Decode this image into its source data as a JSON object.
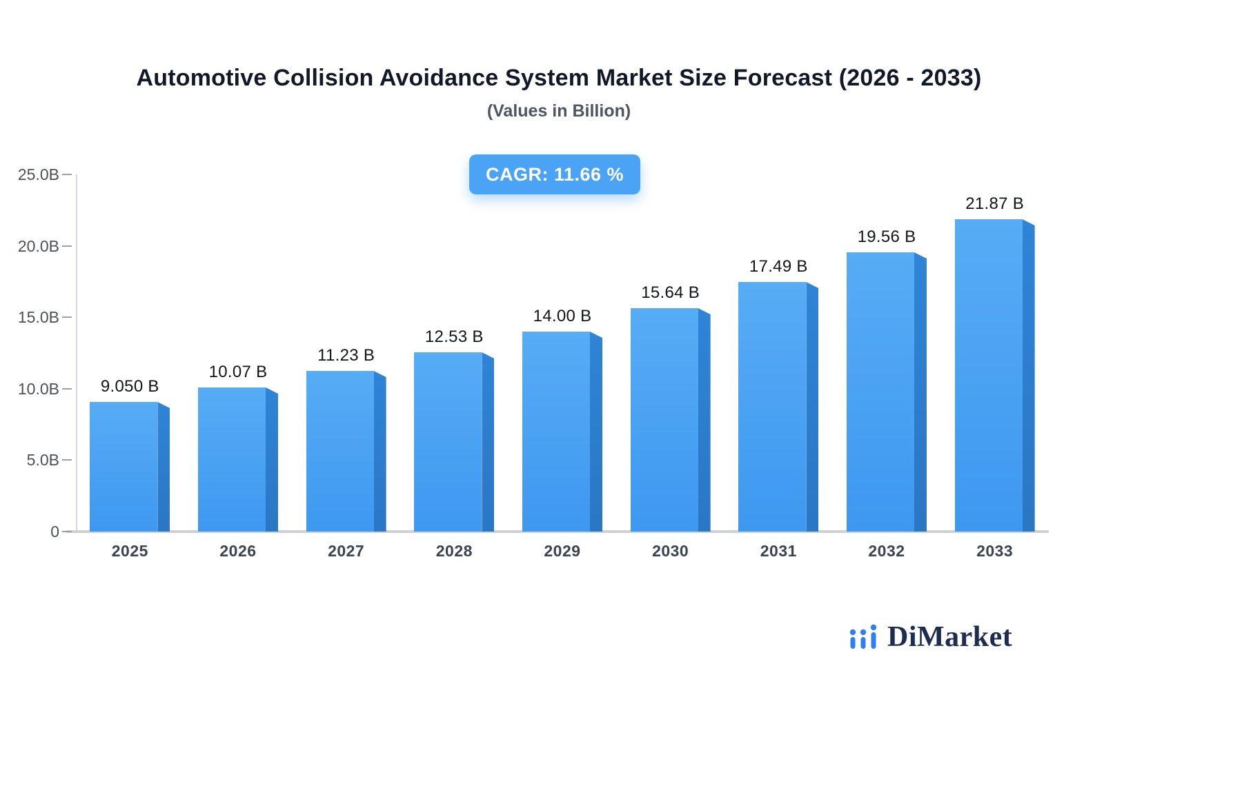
{
  "header": {
    "title": "Automotive Collision Avoidance System Market Size Forecast (2026 - 2033)",
    "subtitle": "(Values in Billion)",
    "cagr_label": "CAGR: 11.66 %"
  },
  "chart_data": {
    "type": "bar",
    "title": "Automotive Collision Avoidance System Market Size Forecast (2026 - 2033)",
    "subtitle": "(Values in Billion)",
    "categories": [
      "2025",
      "2026",
      "2027",
      "2028",
      "2029",
      "2030",
      "2031",
      "2032",
      "2033"
    ],
    "values": [
      9.05,
      10.07,
      11.23,
      12.53,
      14.0,
      15.64,
      17.49,
      19.56,
      21.87
    ],
    "value_labels": [
      "9.050 B",
      "10.07 B",
      "11.23 B",
      "12.53 B",
      "14.00 B",
      "15.64 B",
      "17.49 B",
      "19.56 B",
      "21.87 B"
    ],
    "unit": "Billion",
    "cagr": "11.66 %",
    "xlabel": "",
    "ylabel": "",
    "ylim": [
      0,
      25
    ],
    "yticks": [
      {
        "label": "25.0B",
        "value": 25
      },
      {
        "label": "20.0B",
        "value": 20
      },
      {
        "label": "15.0B",
        "value": 15
      },
      {
        "label": "10.0B",
        "value": 10
      },
      {
        "label": "5.0B",
        "value": 5
      },
      {
        "label": "0",
        "value": 0
      }
    ],
    "grid": false,
    "legend": "none",
    "bar_color_top": "#57acf5",
    "bar_color_bottom": "#3e98f0",
    "bar_side_color": "#2a77c4",
    "badge_color": "#4ba3f6"
  },
  "footer": {
    "brand": "DiMarket",
    "brand_icon": "bar-chart-dots-icon",
    "brand_color": "#1d2d50",
    "icon_color": "#2e7ff0"
  }
}
